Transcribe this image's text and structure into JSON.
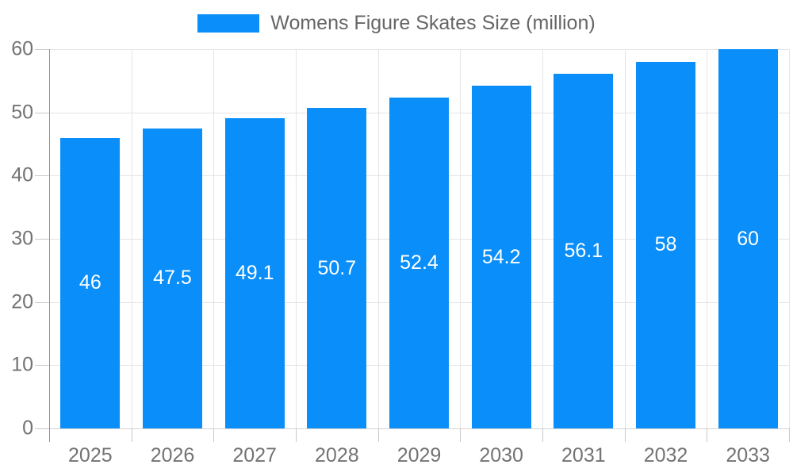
{
  "chart_data": {
    "type": "bar",
    "title": "",
    "legend": "Womens Figure Skates Size (million)",
    "legend_position": "top",
    "categories": [
      "2025",
      "2026",
      "2027",
      "2028",
      "2029",
      "2030",
      "2031",
      "2032",
      "2033"
    ],
    "values": [
      46,
      47.5,
      49.1,
      50.7,
      52.4,
      54.2,
      56.1,
      58,
      60
    ],
    "value_labels": [
      "46",
      "47.5",
      "49.1",
      "50.7",
      "52.4",
      "54.2",
      "56.1",
      "58",
      "60"
    ],
    "xlabel": "",
    "ylabel": "",
    "ylim": [
      0,
      60
    ],
    "y_ticks": [
      0,
      10,
      20,
      30,
      40,
      50,
      60
    ],
    "grid": "on",
    "colors": {
      "bar": "#0a8ef9",
      "grid": "#e4e4e4",
      "baseline": "#d4d4d4",
      "axis": "#919191",
      "tick": "#c9c9c9",
      "axis_label": "#737373",
      "legend_text": "#666666",
      "value_label": "#ffffff",
      "background": "#ffffff"
    }
  }
}
